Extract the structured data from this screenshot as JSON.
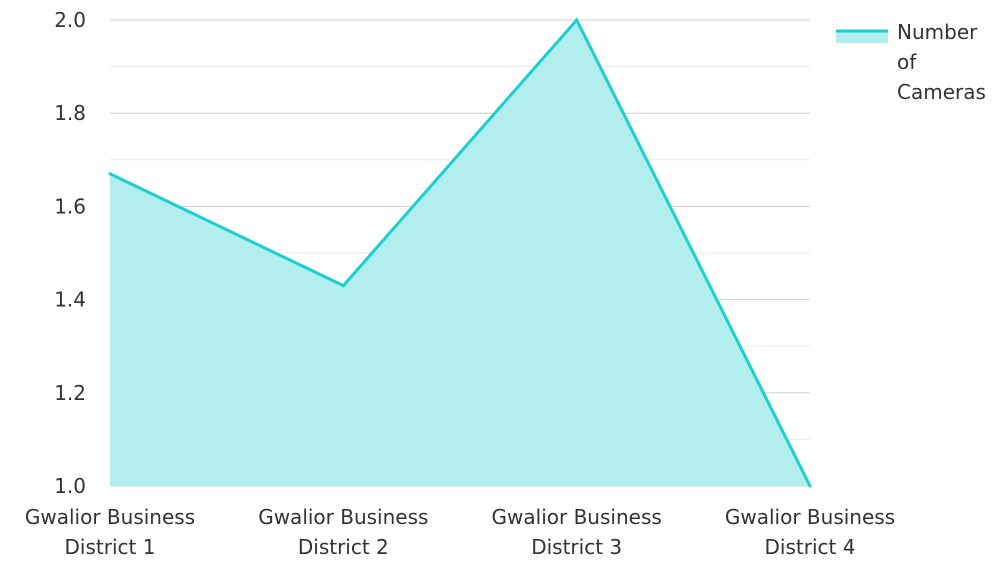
{
  "chart_data": {
    "type": "area",
    "categories": [
      [
        "Gwalior Business",
        "District 1"
      ],
      [
        "Gwalior Business",
        "District 2"
      ],
      [
        "Gwalior Business",
        "District 3"
      ],
      [
        "Gwalior Business",
        "District 4"
      ]
    ],
    "series": [
      {
        "name": "Number of Cameras",
        "legend_lines": [
          "Number",
          "of",
          "Cameras"
        ],
        "values": [
          1.67,
          1.43,
          2.0,
          1.0
        ],
        "line_color": "#1ccfcf",
        "fill_color": "#b2eeee"
      }
    ],
    "ylim": [
      1.0,
      2.0
    ],
    "yticks": [
      "1.0",
      "1.2",
      "1.4",
      "1.6",
      "1.8",
      "2.0"
    ],
    "minor_step": 0.1,
    "grid": true,
    "legend_position": "top-right",
    "title": "",
    "xlabel": "",
    "ylabel": ""
  }
}
